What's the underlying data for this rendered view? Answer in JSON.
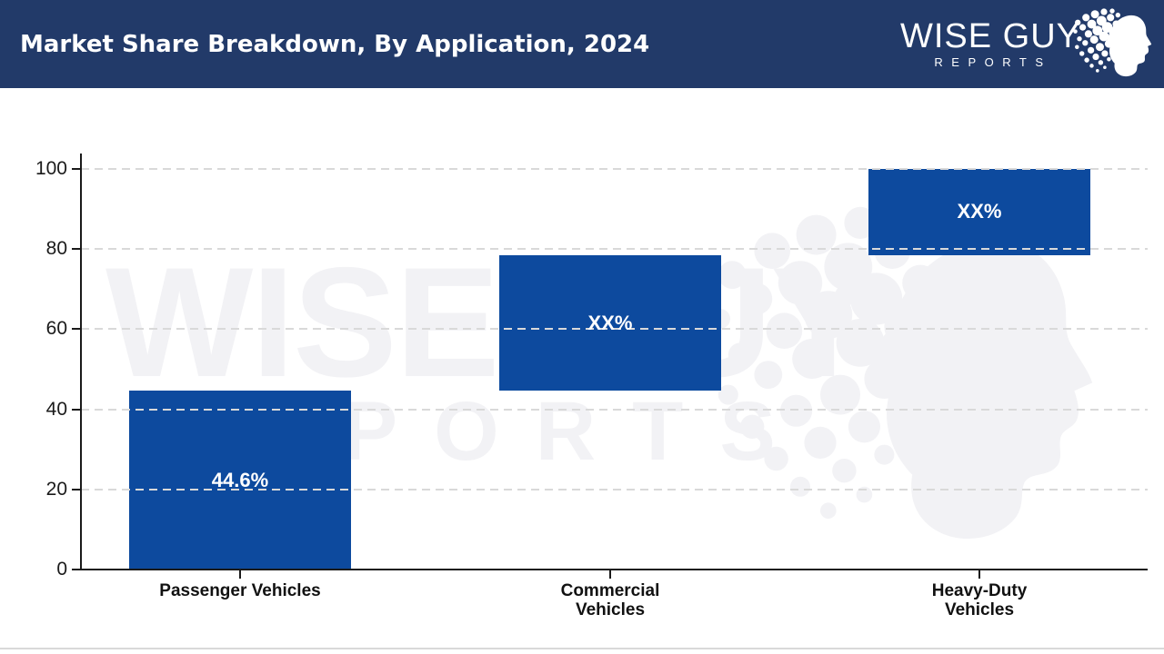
{
  "header": {
    "title": "Market Share Breakdown, By Application, 2024",
    "brand_line1": "WISE GUY",
    "brand_line2": "REPORTS"
  },
  "watermark": {
    "line1": "WISE GUY",
    "line2": "REPORTS"
  },
  "chart_data": {
    "type": "bar",
    "subtype": "waterfall-floating-segments",
    "title": "Market Share Breakdown, By Application, 2024",
    "categories": [
      "Passenger Vehicles",
      "Commercial Vehicles",
      "Heavy-Duty Vehicles"
    ],
    "x_tick_lines": [
      [
        "Passenger Vehicles"
      ],
      [
        "Commercial",
        "Vehicles"
      ],
      [
        "Heavy-Duty",
        "Vehicles"
      ]
    ],
    "series": [
      {
        "name": "Passenger Vehicles",
        "start": 0,
        "end": 44.6,
        "label": "44.6%"
      },
      {
        "name": "Commercial Vehicles",
        "start": 44.6,
        "end": 78.5,
        "label": "XX%"
      },
      {
        "name": "Heavy-Duty Vehicles",
        "start": 78.5,
        "end": 100,
        "label": "XX%"
      }
    ],
    "xlabel": "",
    "ylabel": "",
    "ylim": [
      0,
      100
    ],
    "yticks": [
      0,
      20,
      40,
      60,
      80,
      100
    ],
    "grid": "horizontal-dashed",
    "legend": "none",
    "colors": {
      "bar": "#0D4A9E",
      "bar_label": "#FFFFFF",
      "header_bg": "#223A69",
      "grid": "#D9D9D9",
      "axis": "#1A1A1A",
      "watermark": "#F2F2F5"
    }
  }
}
